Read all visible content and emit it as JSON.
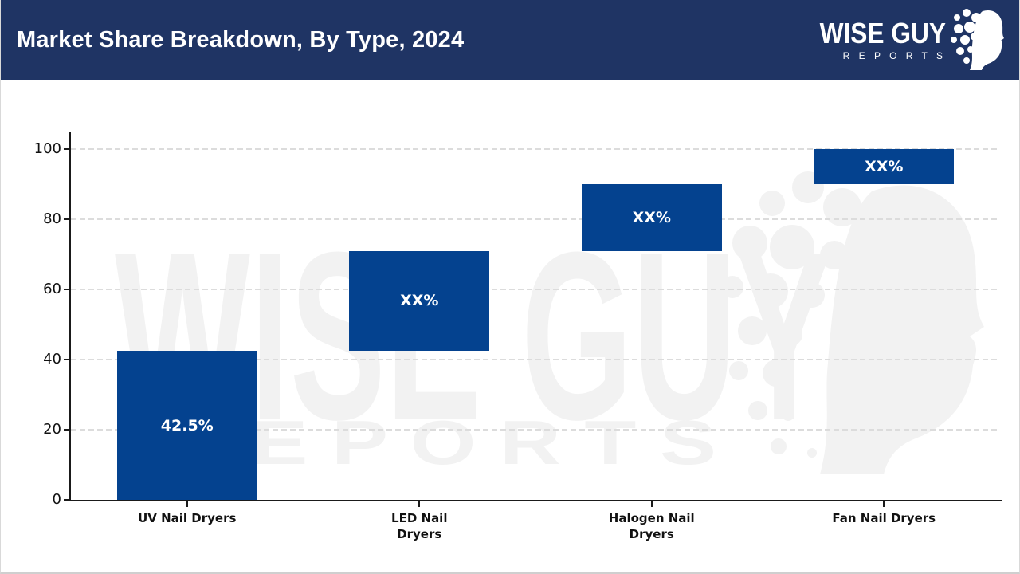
{
  "header": {
    "title": "Market Share Breakdown, By Type, 2024",
    "logo": {
      "name": "WISE GUY",
      "subname": "R E P O R T S"
    }
  },
  "watermark": {
    "line1": "WISE GUY",
    "line2": "R E P O R T S"
  },
  "colors": {
    "header_bg": "#1f3464",
    "bar": "#04428f",
    "bar_label": "#ffffff",
    "axis": "#1a1a1a",
    "grid": "#dcdcdc",
    "watermark": "#f2f2f2"
  },
  "chart_data": {
    "type": "bar",
    "variant": "waterfall",
    "title": "Market Share Breakdown, By Type, 2024",
    "categories": [
      "UV Nail Dryers",
      "LED Nail Dryers",
      "Halogen Nail Dryers",
      "Fan Nail Dryers"
    ],
    "bars": [
      {
        "category": "UV Nail Dryers",
        "start": 0,
        "end": 42.5,
        "increment": 42.5,
        "label": "42.5%"
      },
      {
        "category": "LED Nail Dryers",
        "start": 42.5,
        "end": 71,
        "increment": 28.5,
        "label": "XX%"
      },
      {
        "category": "Halogen Nail Dryers",
        "start": 71,
        "end": 90,
        "increment": 19,
        "label": "XX%"
      },
      {
        "category": "Fan Nail Dryers",
        "start": 90,
        "end": 100,
        "increment": 10,
        "label": "XX%"
      }
    ],
    "xlabel": "",
    "ylabel": "",
    "yticks": [
      0,
      20,
      40,
      60,
      80,
      100
    ],
    "ylim": [
      0,
      105
    ],
    "grid": "dashed-horizontal",
    "legend": "none",
    "bar_color": "#04428f",
    "bar_label_color": "#ffffff"
  }
}
